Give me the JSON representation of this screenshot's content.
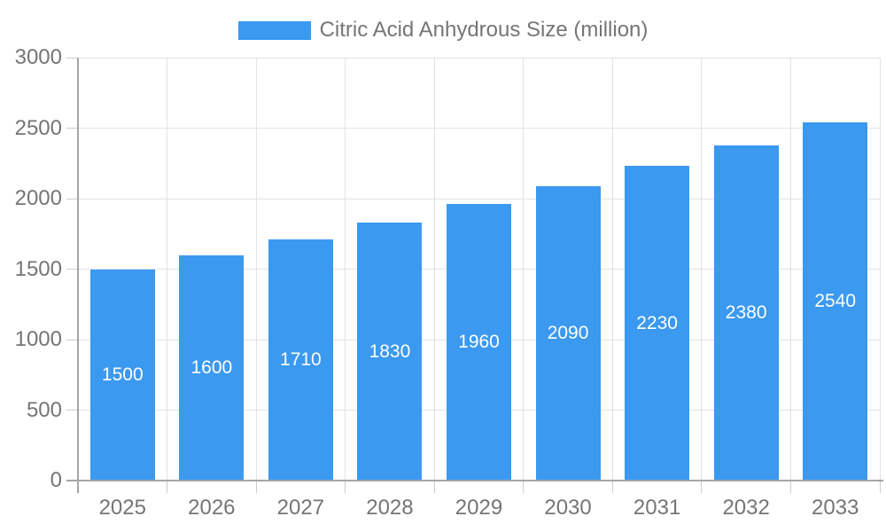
{
  "legend": {
    "label": "Citric Acid Anhydrous Size (million)",
    "swatch_color": "#3B99F0"
  },
  "chart_data": {
    "type": "bar",
    "title": "",
    "categories": [
      "2025",
      "2026",
      "2027",
      "2028",
      "2029",
      "2030",
      "2031",
      "2032",
      "2033"
    ],
    "series": [
      {
        "name": "Citric Acid Anhydrous Size (million)",
        "values": [
          1500,
          1600,
          1710,
          1830,
          1960,
          2090,
          2230,
          2380,
          2540
        ],
        "color": "#3B99F0"
      }
    ],
    "value_labels": [
      "1500",
      "1600",
      "1710",
      "1830",
      "1960",
      "2090",
      "2230",
      "2380",
      "2540"
    ],
    "xlabel": "",
    "ylabel": "",
    "ylim": [
      0,
      3000
    ],
    "y_ticks": [
      0,
      500,
      1000,
      1500,
      2000,
      2500,
      3000
    ],
    "y_tick_labels": [
      "0",
      "500",
      "1000",
      "1500",
      "2000",
      "2500",
      "3000"
    ],
    "grid": true,
    "legend_position": "top-center",
    "value_label_position": "inside-center"
  },
  "colors": {
    "bar": "#3B99F0",
    "axis_text": "#757575",
    "value_text": "#FFFFFF",
    "grid_line": "#E3E3E3",
    "tick_line": "#CCCCCC",
    "axis_line": "#A5A5A5",
    "background": "#FFFFFF"
  }
}
